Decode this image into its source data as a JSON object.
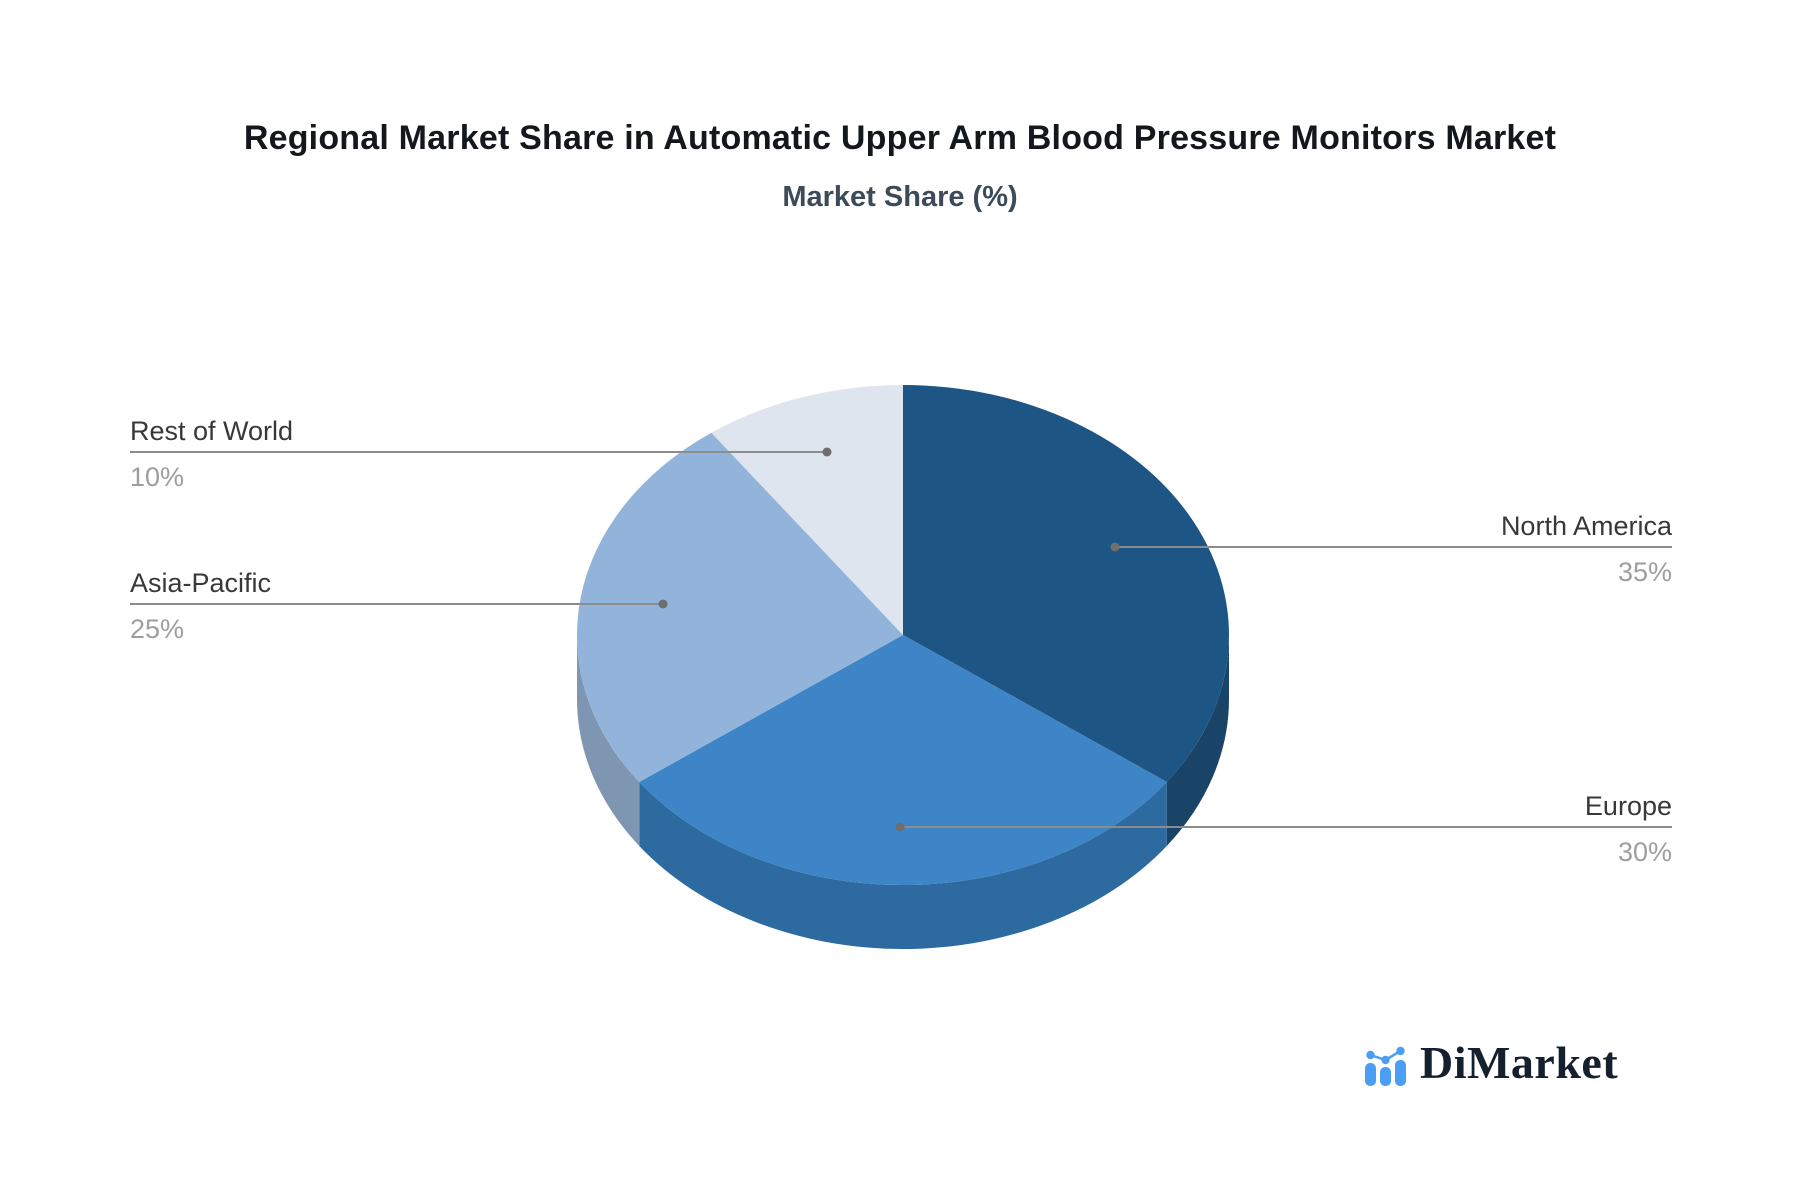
{
  "header": {
    "title": "Regional Market Share in Automatic Upper Arm Blood Pressure Monitors Market",
    "subtitle": "Market Share (%)",
    "title_color": "#14171c",
    "subtitle_color": "#3d4a5a"
  },
  "chart_data": {
    "type": "pie",
    "title": "Regional Market Share in Automatic Upper Arm Blood Pressure Monitors Market",
    "subtitle": "Market Share (%)",
    "unit": "%",
    "effect_3d": true,
    "start_angle_deg": 0,
    "direction": "clockwise",
    "slices": [
      {
        "label": "North America",
        "value": 35,
        "pct_text": "35%",
        "color": "#1d5584",
        "side_color": "#1a4368",
        "label_side": "right"
      },
      {
        "label": "Europe",
        "value": 30,
        "pct_text": "30%",
        "color": "#3d85c6",
        "side_color": "#2d6aa0",
        "label_side": "right"
      },
      {
        "label": "Asia-Pacific",
        "value": 25,
        "pct_text": "25%",
        "color": "#92b4da",
        "side_color": "#7e96b2",
        "label_side": "left"
      },
      {
        "label": "Rest of World",
        "value": 10,
        "pct_text": "10%",
        "color": "#dfe5ee",
        "side_color": "#c2ccd9",
        "label_side": "left"
      }
    ],
    "legend": "none",
    "label_color": "#383838",
    "pct_color": "#9e9e9e",
    "line_color": "#8c8c8c",
    "dot_color": "#6e6e6e"
  },
  "logo": {
    "text": "DiMarket",
    "text_color": "#15202f",
    "icon_color": "#4a9ff5",
    "icon": "bar-chart-with-trend-dots"
  }
}
